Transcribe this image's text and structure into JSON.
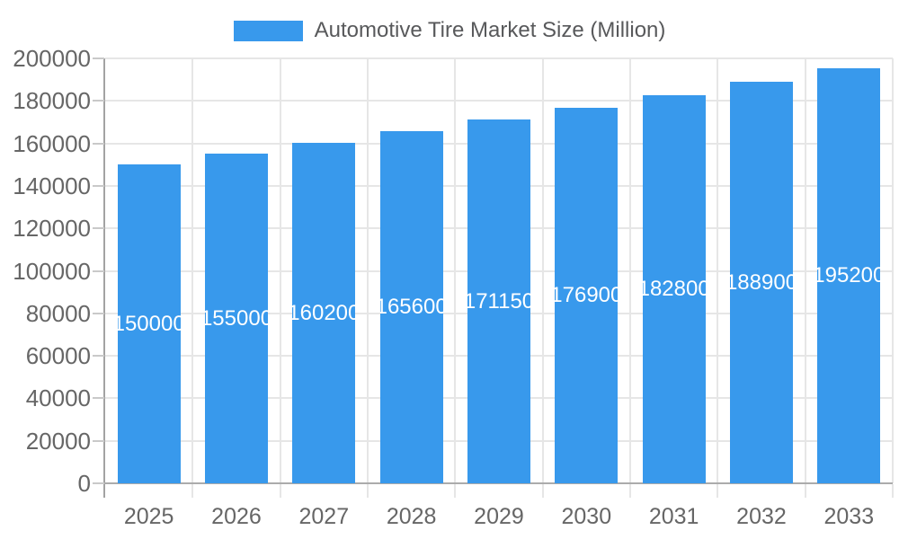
{
  "legend": {
    "label": "Automotive Tire Market Size (Million)"
  },
  "chart_data": {
    "type": "bar",
    "title": "Automotive Tire Market Size (Million)",
    "categories": [
      "2025",
      "2026",
      "2027",
      "2028",
      "2029",
      "2030",
      "2031",
      "2032",
      "2033"
    ],
    "values": [
      150000,
      155000,
      160200,
      165600,
      171150,
      176900,
      182800,
      188900,
      195200
    ],
    "bar_value_labels": [
      "150000",
      "155000",
      "160200",
      "165600",
      "171150",
      "176900",
      "182800",
      "188900",
      "195200"
    ],
    "xlabel": "",
    "ylabel": "",
    "ylim": [
      0,
      200000
    ],
    "ytick_step": 20000,
    "ytick_labels": [
      "0",
      "20000",
      "40000",
      "60000",
      "80000",
      "100000",
      "120000",
      "140000",
      "160000",
      "180000",
      "200000"
    ],
    "grid": true,
    "legend_position": "top-center",
    "bar_color": "#3899ec",
    "bar_label_color": "#ffffff"
  },
  "colors": {
    "bar": "#3899ec",
    "grid": "#e6e6e6",
    "axis": "#a8a8a8",
    "y_tick": "#c9c9c9",
    "axis_text": "#666666",
    "title_text": "#58595b",
    "background": "#ffffff"
  }
}
